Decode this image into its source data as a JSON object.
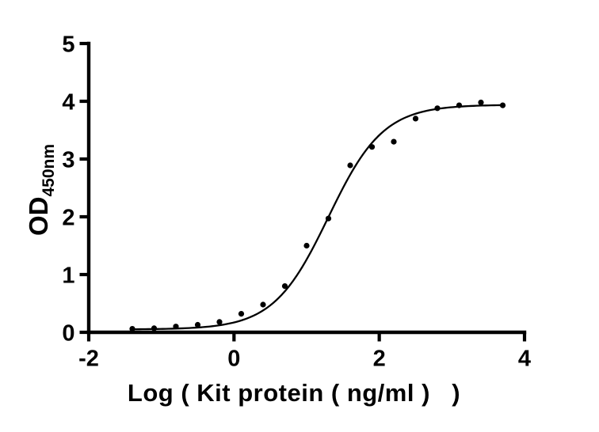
{
  "chart_data": {
    "type": "scatter",
    "title": "",
    "xlabel": "Log ( Kit protein ( ng/ml )   )",
    "ylabel_main": "OD",
    "ylabel_sub": "450nm",
    "xlim": [
      -2,
      4
    ],
    "ylim": [
      0,
      5
    ],
    "x_ticks": [
      "-2",
      "0",
      "2",
      "4"
    ],
    "x_tick_values": [
      -2,
      0,
      2,
      4
    ],
    "y_ticks": [
      "0",
      "1",
      "2",
      "3",
      "4",
      "5"
    ],
    "y_tick_values": [
      0,
      1,
      2,
      3,
      4,
      5
    ],
    "grid": false,
    "legend": null,
    "marker_color": "#000000",
    "line_color": "#000000",
    "background_color": "#ffffff",
    "x": [
      -1.4,
      -1.1,
      -0.8,
      -0.5,
      -0.2,
      0.1,
      0.4,
      0.7,
      1.0,
      1.3,
      1.6,
      1.9,
      2.2,
      2.5,
      2.8,
      3.1,
      3.4,
      3.7
    ],
    "y": [
      0.06,
      0.07,
      0.1,
      0.13,
      0.18,
      0.32,
      0.48,
      0.8,
      1.5,
      1.97,
      2.89,
      3.21,
      3.3,
      3.7,
      3.88,
      3.93,
      3.98,
      3.93
    ],
    "fit": {
      "type": "4PL-sigmoid",
      "bottom": 0.05,
      "top": 3.94,
      "logEC50": 1.3,
      "hillslope": 1.15,
      "x_start": -1.42,
      "x_end": 3.7
    }
  }
}
